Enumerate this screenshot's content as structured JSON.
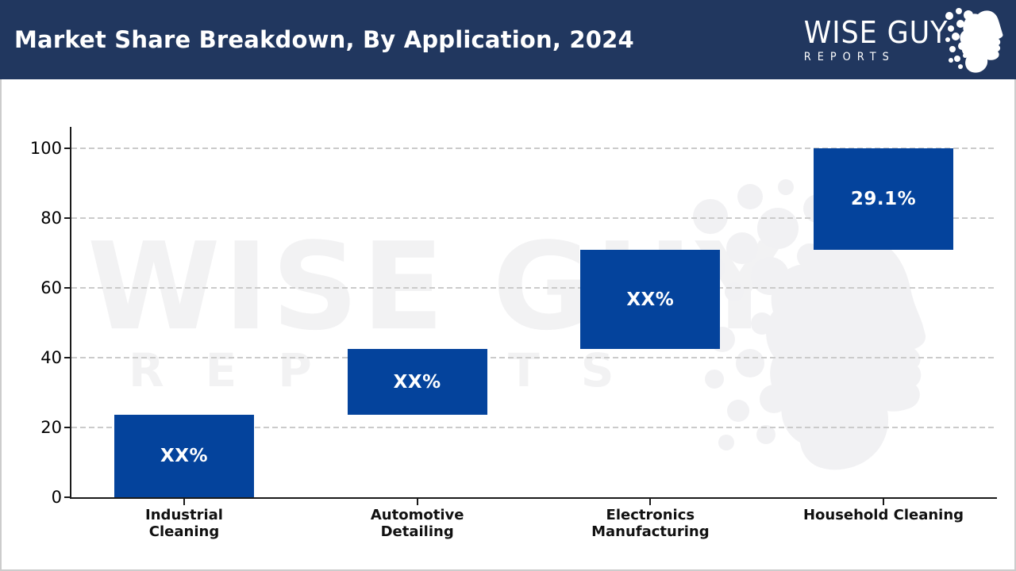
{
  "header": {
    "title": "Market Share Breakdown, By Application, 2024",
    "logo": {
      "wordmark": "WISE GUY",
      "subtext": "REPORTS"
    },
    "bg_color": "#21375f"
  },
  "watermark": {
    "wordmark": "WISE GUY",
    "subtext": "REPORTS"
  },
  "chart_data": {
    "type": "bar",
    "subtype": "waterfall",
    "title": "Market Share Breakdown, By Application, 2024",
    "categories": [
      "Industrial Cleaning",
      "Automotive Detailing",
      "Electronics Manufacturing",
      "Household Cleaning"
    ],
    "category_lines": [
      [
        "Industrial",
        "Cleaning"
      ],
      [
        "Automotive",
        "Detailing"
      ],
      [
        "Electronics",
        "Manufacturing"
      ],
      [
        "Household Cleaning"
      ]
    ],
    "segments": [
      {
        "category": "Industrial Cleaning",
        "label": "XX%",
        "start": 0,
        "end": 23.6,
        "value": 23.6
      },
      {
        "category": "Automotive Detailing",
        "label": "XX%",
        "start": 23.6,
        "end": 42.4,
        "value": 18.8
      },
      {
        "category": "Electronics Manufacturing",
        "label": "XX%",
        "start": 42.4,
        "end": 70.9,
        "value": 28.5
      },
      {
        "category": "Household Cleaning",
        "label": "29.1%",
        "start": 70.9,
        "end": 100,
        "value": 29.1
      }
    ],
    "xlabel": "",
    "ylabel": "",
    "ylim": [
      0,
      105
    ],
    "yticks": [
      0,
      20,
      40,
      60,
      80,
      100
    ],
    "grid": "horizontal-dashed",
    "legend": "none",
    "bar_color": "#04439c",
    "grid_color": "#cbcbcb",
    "value_label_color": "#ffffff"
  }
}
